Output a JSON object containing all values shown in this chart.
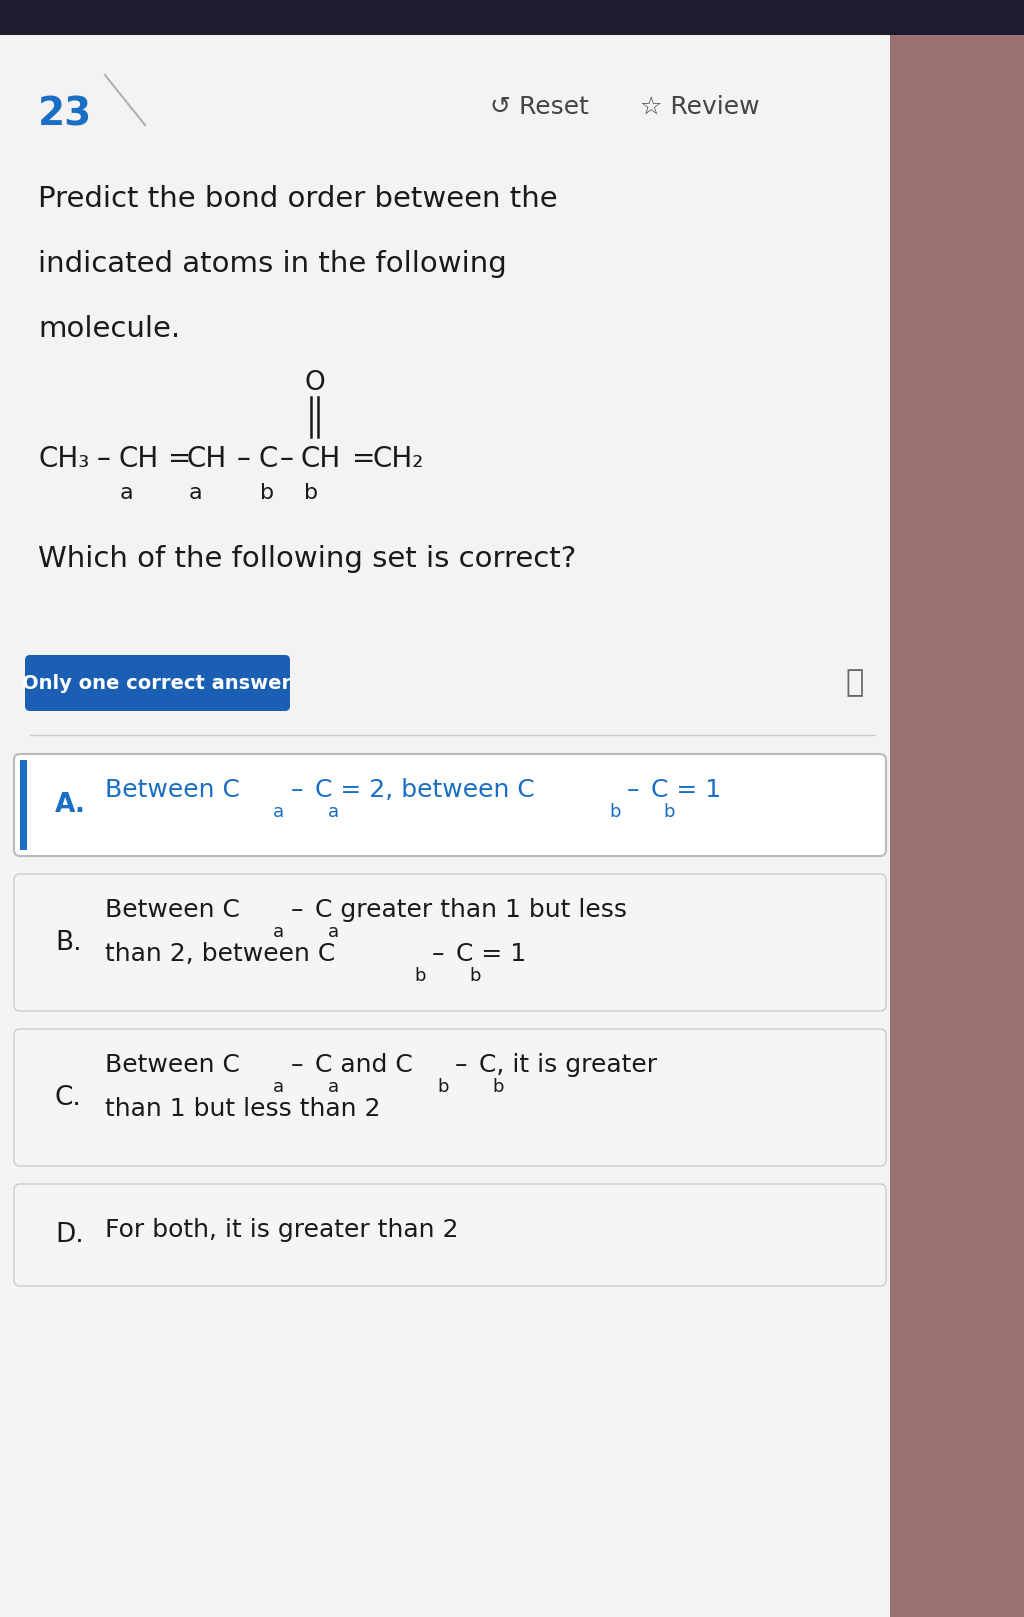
{
  "bg_color": "#e0dede",
  "question_number": "23",
  "question_number_color": "#1a6fc4",
  "question_text_lines": [
    "Predict the bond order between the",
    "indicated atoms in the following",
    "molecule."
  ],
  "which_text": "Which of the following set is correct?",
  "only_one_label": "Only one correct answer",
  "only_one_bg": "#1a5fb4",
  "text_color": "#1a1a1a",
  "option_A_color": "#1a6fc4",
  "box_border_color": "#cccccc",
  "top_bar_color": "#222233",
  "right_panel_color": "#8a6060",
  "main_bg": "#f2f0f0",
  "option_bg_selected": "#ffffff",
  "option_bg_normal": "#f0f0f0"
}
